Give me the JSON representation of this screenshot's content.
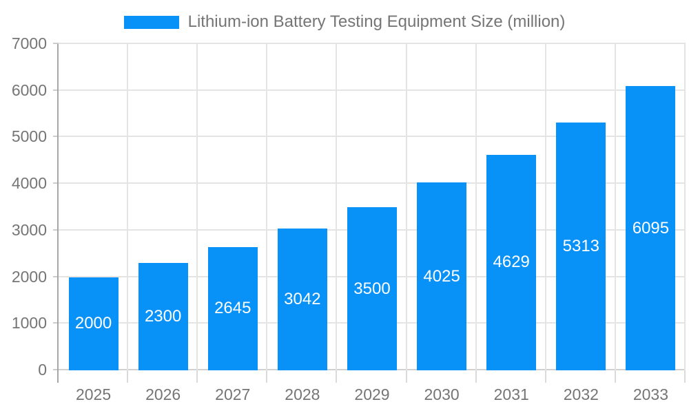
{
  "chart_data": {
    "type": "bar",
    "title": "Lithium-ion Battery Testing Equipment Size (million)",
    "categories": [
      "2025",
      "2026",
      "2027",
      "2028",
      "2029",
      "2030",
      "2031",
      "2032",
      "2033"
    ],
    "values": [
      2000,
      2300,
      2645,
      3042,
      3500,
      4025,
      4629,
      5313,
      6095
    ],
    "value_labels": [
      "2000",
      "2300",
      "2645",
      "3042",
      "3500",
      "4025",
      "4629",
      "5313",
      "6095"
    ],
    "yticks": [
      "0",
      "1000",
      "2000",
      "3000",
      "4000",
      "5000",
      "6000",
      "7000"
    ],
    "ylim": [
      0,
      7000
    ],
    "xlabel": "",
    "ylabel": "",
    "grid": "on",
    "legend_position": "top",
    "colors": {
      "bar": "#0892f8",
      "bar_label": "#ffffff",
      "axis_text": "#757575",
      "legend_text": "#757575",
      "gridline": "#e4e4e4",
      "axis_line": "#a6a6a6"
    }
  }
}
